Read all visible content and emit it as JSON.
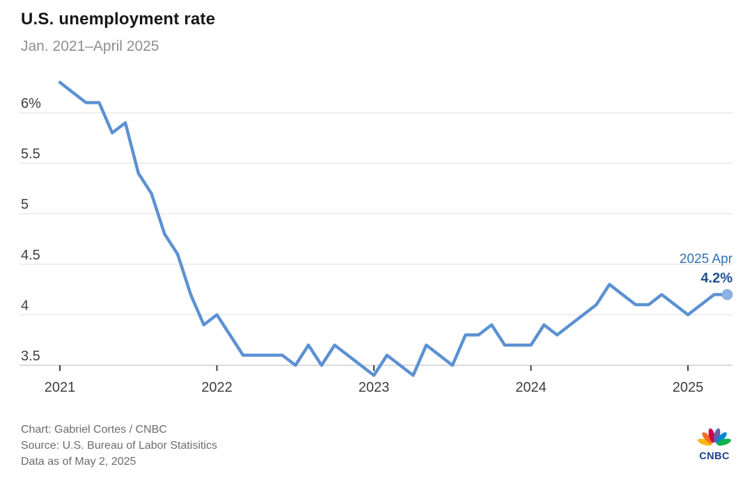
{
  "header": {
    "title": "U.S. unemployment rate",
    "subtitle": "Jan. 2021–April 2025"
  },
  "chart_data": {
    "type": "line",
    "title": "U.S. unemployment rate",
    "subtitle": "Jan. 2021–April 2025",
    "x_start": "2021-01",
    "x_end": "2025-04",
    "x_tick_labels": [
      "2021",
      "2022",
      "2023",
      "2024",
      "2025"
    ],
    "y_ticks": [
      {
        "value": 6.0,
        "label": "6%"
      },
      {
        "value": 5.5,
        "label": "5.5"
      },
      {
        "value": 5.0,
        "label": "5"
      },
      {
        "value": 4.5,
        "label": "4.5"
      },
      {
        "value": 4.0,
        "label": "4"
      },
      {
        "value": 3.5,
        "label": "3.5"
      }
    ],
    "ylim": [
      3.4,
      6.35
    ],
    "grid": true,
    "legend": false,
    "series": [
      {
        "name": "U.S. unemployment rate",
        "unit": "%",
        "start_month": "2021-01",
        "monthly_values": [
          6.3,
          6.2,
          6.1,
          6.1,
          5.8,
          5.9,
          5.4,
          5.2,
          4.8,
          4.6,
          4.2,
          3.9,
          4.0,
          3.8,
          3.6,
          3.6,
          3.6,
          3.6,
          3.5,
          3.7,
          3.5,
          3.7,
          3.6,
          3.5,
          3.4,
          3.6,
          3.5,
          3.4,
          3.7,
          3.6,
          3.5,
          3.8,
          3.8,
          3.9,
          3.7,
          3.7,
          3.7,
          3.9,
          3.8,
          3.9,
          4.0,
          4.1,
          4.3,
          4.2,
          4.1,
          4.1,
          4.2,
          4.1,
          4.0,
          4.1,
          4.2,
          4.2
        ]
      }
    ],
    "end_annotation": {
      "date_label": "2025 Apr",
      "value_label": "4.2%",
      "value": 4.2
    }
  },
  "footer": {
    "credit": "Chart: Gabriel Cortes / CNBC",
    "source": "Source: U.S. Bureau of Labor Statisitics",
    "data_as_of": "Data as of May 2, 2025"
  },
  "logo": {
    "brand": "CNBC"
  },
  "colors": {
    "line": "#5b91d2",
    "end_dot": "#8ab1e1",
    "grid": "#dedede",
    "axis": "#c4c4c4",
    "tick": "#3c3c3c",
    "tick_label": "#3d3d3d",
    "annotation_date": "#3070b5",
    "annotation_value": "#1b4e91",
    "peacock": [
      "#FCB711",
      "#F37021",
      "#CC004C",
      "#6460AA",
      "#0089D0",
      "#0DB14B"
    ],
    "cnbc_navy": "#1b3f8f"
  }
}
